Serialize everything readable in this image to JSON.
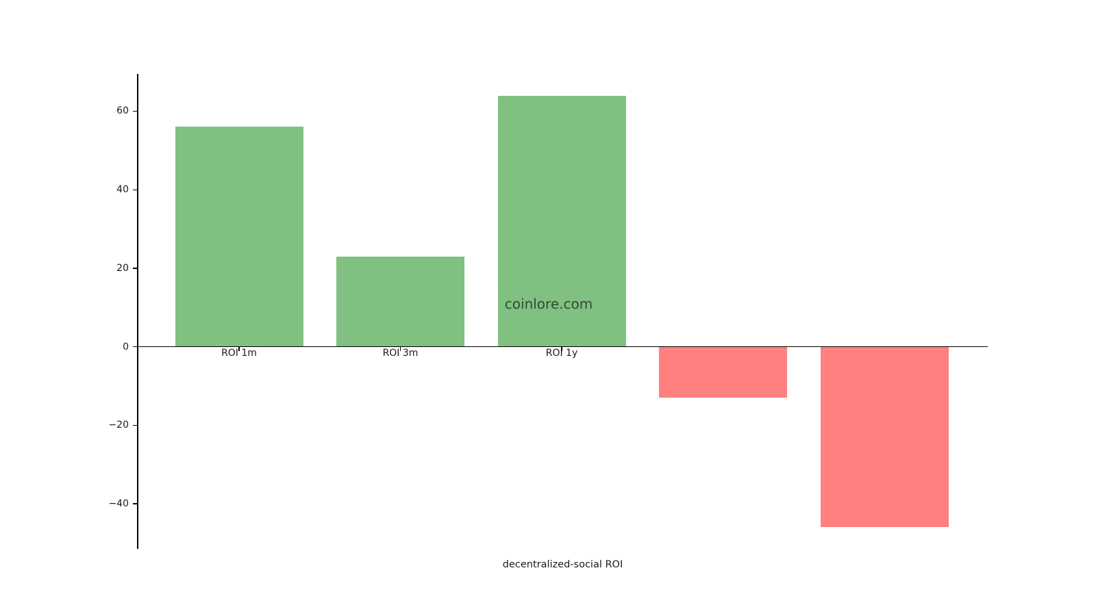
{
  "page": {
    "background": "#ffffff"
  },
  "chart_data": {
    "type": "bar",
    "xlabel": "decentralized-social ROI",
    "watermark": "coinlore.com",
    "categories": [
      "ROI 1m",
      "ROI 3m",
      "ROI 1y",
      "",
      ""
    ],
    "values": [
      56,
      23,
      64,
      -13,
      -46
    ],
    "ytick_values": [
      60,
      40,
      20,
      0,
      -20,
      -40
    ],
    "ytick_labels": [
      "60",
      "40",
      "20",
      "0",
      "−20",
      "−40"
    ],
    "ylim": [
      -51.5,
      69.5
    ],
    "positive_color": "#80c080",
    "negative_color": "#ff8080",
    "axis_color": "#000000",
    "grid": false,
    "legend_position": "none"
  }
}
